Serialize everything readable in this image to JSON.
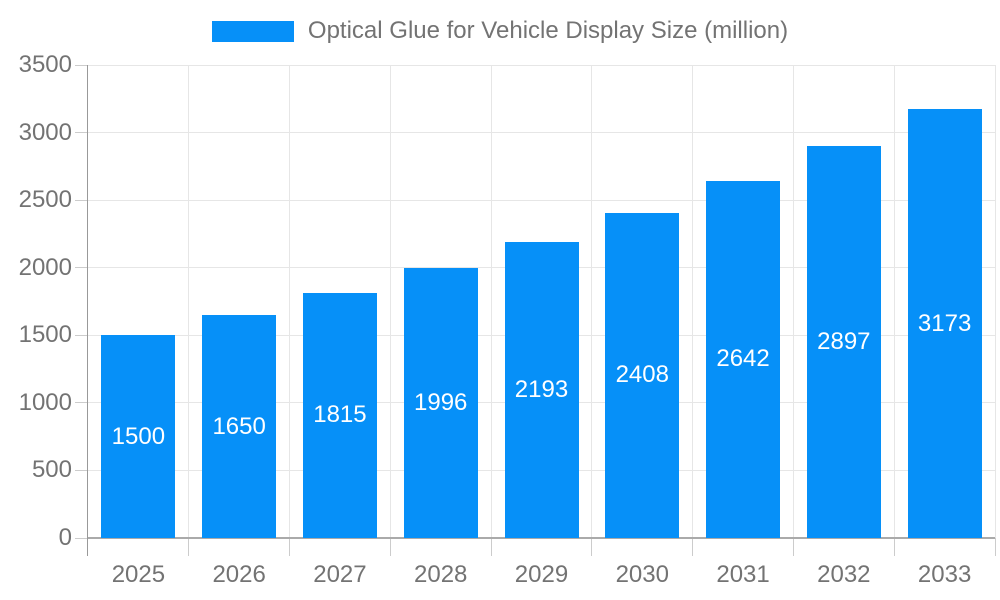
{
  "chart_data": {
    "type": "bar",
    "title": "Optical Glue for Vehicle Display Size (million)",
    "categories": [
      "2025",
      "2026",
      "2027",
      "2028",
      "2029",
      "2030",
      "2031",
      "2032",
      "2033"
    ],
    "series": [
      {
        "name": "Optical Glue for Vehicle Display Size (million)",
        "values": [
          1500,
          1650,
          1815,
          1996,
          2193,
          2408,
          2642,
          2897,
          3173
        ]
      }
    ],
    "xlabel": "",
    "ylabel": "",
    "ylim": [
      0,
      3500
    ],
    "ytick_step": 500,
    "yticks": [
      0,
      500,
      1000,
      1500,
      2000,
      2500,
      3000,
      3500
    ],
    "grid": true,
    "legend_position": "top-center",
    "value_labels": "inside-center"
  },
  "colors": {
    "bar": "#0690f8",
    "value_label": "#ffffff",
    "tick_label": "#737373",
    "legend_text": "#737373",
    "gridline": "#e6e6e6",
    "minor_tick": "#cccccc",
    "y_axis_line": "#999999",
    "x_baseline": "#aaaaaa",
    "background": "#ffffff"
  }
}
